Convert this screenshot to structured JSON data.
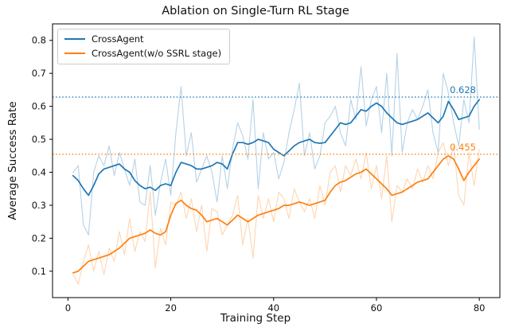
{
  "title": "Ablation on Single-Turn RL Stage",
  "axes": {
    "xlabel": "Training Step",
    "ylabel": "Average Success Rate"
  },
  "legend": {
    "items": [
      {
        "label": "CrossAgent",
        "color": "#1f77b4"
      },
      {
        "label": "CrossAgent(w/o SSRL stage)",
        "color": "#ff7f0e"
      }
    ]
  },
  "annotations": [
    {
      "label": "0.628",
      "value": 0.628,
      "color": "#1f77b4"
    },
    {
      "label": "0.455",
      "value": 0.455,
      "color": "#ff7f0e"
    }
  ],
  "chart_data": {
    "type": "line",
    "title": "Ablation on Single-Turn RL Stage",
    "xlabel": "Training Step",
    "ylabel": "Average Success Rate",
    "xlim": [
      -3,
      84
    ],
    "ylim": [
      0.02,
      0.85
    ],
    "xticks": [
      0,
      20,
      40,
      60,
      80
    ],
    "yticks": [
      0.1,
      0.2,
      0.3,
      0.4,
      0.5,
      0.6,
      0.7,
      0.8
    ],
    "grid": false,
    "legend_position": "upper left",
    "x": [
      1,
      2,
      3,
      4,
      5,
      6,
      7,
      8,
      9,
      10,
      11,
      12,
      13,
      14,
      15,
      16,
      17,
      18,
      19,
      20,
      21,
      22,
      23,
      24,
      25,
      26,
      27,
      28,
      29,
      30,
      31,
      32,
      33,
      34,
      35,
      36,
      37,
      38,
      39,
      40,
      41,
      42,
      43,
      44,
      45,
      46,
      47,
      48,
      49,
      50,
      51,
      52,
      53,
      54,
      55,
      56,
      57,
      58,
      59,
      60,
      61,
      62,
      63,
      64,
      65,
      66,
      67,
      68,
      69,
      70,
      71,
      72,
      73,
      74,
      75,
      76,
      77,
      78,
      79,
      80
    ],
    "series": [
      {
        "name": "CrossAgent raw",
        "color": "#1f77b4",
        "opacity": 0.33,
        "width": 1.1,
        "values": [
          0.4,
          0.42,
          0.24,
          0.21,
          0.4,
          0.45,
          0.42,
          0.48,
          0.39,
          0.46,
          0.41,
          0.36,
          0.44,
          0.31,
          0.3,
          0.42,
          0.27,
          0.37,
          0.44,
          0.33,
          0.52,
          0.66,
          0.45,
          0.52,
          0.37,
          0.41,
          0.45,
          0.4,
          0.31,
          0.45,
          0.35,
          0.47,
          0.55,
          0.51,
          0.44,
          0.62,
          0.35,
          0.52,
          0.44,
          0.46,
          0.38,
          0.43,
          0.52,
          0.59,
          0.67,
          0.45,
          0.52,
          0.41,
          0.45,
          0.55,
          0.57,
          0.6,
          0.52,
          0.48,
          0.62,
          0.56,
          0.72,
          0.54,
          0.62,
          0.66,
          0.52,
          0.7,
          0.45,
          0.76,
          0.46,
          0.55,
          0.59,
          0.56,
          0.6,
          0.65,
          0.52,
          0.46,
          0.7,
          0.64,
          0.55,
          0.48,
          0.62,
          0.55,
          0.81,
          0.53
        ]
      },
      {
        "name": "CrossAgent smoothed",
        "color": "#1f77b4",
        "opacity": 1,
        "width": 1.7,
        "values": [
          0.39,
          0.375,
          0.35,
          0.33,
          0.36,
          0.395,
          0.41,
          0.415,
          0.42,
          0.425,
          0.41,
          0.4,
          0.375,
          0.36,
          0.35,
          0.355,
          0.345,
          0.36,
          0.365,
          0.36,
          0.4,
          0.43,
          0.425,
          0.42,
          0.41,
          0.41,
          0.415,
          0.42,
          0.43,
          0.425,
          0.41,
          0.455,
          0.49,
          0.49,
          0.485,
          0.49,
          0.5,
          0.495,
          0.49,
          0.47,
          0.46,
          0.45,
          0.465,
          0.48,
          0.49,
          0.495,
          0.5,
          0.49,
          0.488,
          0.49,
          0.51,
          0.53,
          0.55,
          0.545,
          0.55,
          0.57,
          0.59,
          0.585,
          0.6,
          0.61,
          0.6,
          0.58,
          0.565,
          0.55,
          0.545,
          0.55,
          0.555,
          0.56,
          0.57,
          0.58,
          0.565,
          0.55,
          0.57,
          0.615,
          0.59,
          0.56,
          0.565,
          0.57,
          0.6,
          0.62
        ]
      },
      {
        "name": "CrossAgent w/o SSRL raw",
        "color": "#ff7f0e",
        "opacity": 0.33,
        "width": 1.1,
        "values": [
          0.09,
          0.06,
          0.13,
          0.18,
          0.1,
          0.16,
          0.09,
          0.17,
          0.13,
          0.22,
          0.15,
          0.26,
          0.16,
          0.22,
          0.19,
          0.34,
          0.11,
          0.23,
          0.18,
          0.31,
          0.3,
          0.34,
          0.26,
          0.32,
          0.22,
          0.3,
          0.16,
          0.29,
          0.28,
          0.21,
          0.24,
          0.27,
          0.33,
          0.18,
          0.26,
          0.14,
          0.33,
          0.26,
          0.32,
          0.25,
          0.34,
          0.32,
          0.26,
          0.35,
          0.31,
          0.28,
          0.32,
          0.26,
          0.36,
          0.3,
          0.4,
          0.42,
          0.34,
          0.42,
          0.39,
          0.44,
          0.38,
          0.46,
          0.35,
          0.42,
          0.32,
          0.45,
          0.25,
          0.36,
          0.34,
          0.38,
          0.35,
          0.41,
          0.37,
          0.42,
          0.38,
          0.46,
          0.49,
          0.42,
          0.48,
          0.33,
          0.3,
          0.46,
          0.36,
          0.47
        ]
      },
      {
        "name": "CrossAgent w/o SSRL smoothed",
        "color": "#ff7f0e",
        "opacity": 1,
        "width": 1.7,
        "values": [
          0.095,
          0.1,
          0.115,
          0.13,
          0.135,
          0.14,
          0.145,
          0.15,
          0.16,
          0.17,
          0.185,
          0.2,
          0.205,
          0.21,
          0.215,
          0.225,
          0.215,
          0.21,
          0.22,
          0.27,
          0.305,
          0.315,
          0.3,
          0.29,
          0.285,
          0.27,
          0.25,
          0.255,
          0.26,
          0.25,
          0.24,
          0.255,
          0.27,
          0.26,
          0.25,
          0.26,
          0.27,
          0.275,
          0.28,
          0.285,
          0.29,
          0.3,
          0.3,
          0.305,
          0.31,
          0.305,
          0.3,
          0.305,
          0.31,
          0.315,
          0.34,
          0.36,
          0.37,
          0.375,
          0.385,
          0.395,
          0.4,
          0.41,
          0.395,
          0.38,
          0.365,
          0.35,
          0.33,
          0.335,
          0.34,
          0.35,
          0.36,
          0.37,
          0.375,
          0.38,
          0.4,
          0.42,
          0.44,
          0.45,
          0.44,
          0.41,
          0.375,
          0.4,
          0.42,
          0.44
        ]
      }
    ],
    "hlines": [
      {
        "y": 0.628,
        "color": "#1f77b4",
        "label": "0.628"
      },
      {
        "y": 0.455,
        "color": "#ff7f0e",
        "label": "0.455"
      }
    ]
  }
}
